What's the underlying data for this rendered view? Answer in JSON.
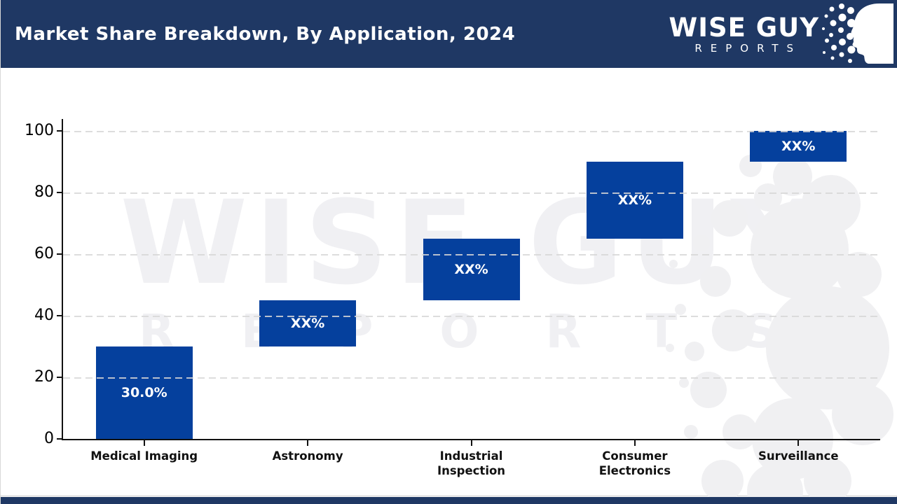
{
  "header": {
    "title": "Market Share Breakdown, By Application, 2024",
    "logo": {
      "line1": "WISE GUY",
      "line2": "REPORTS"
    }
  },
  "watermark": {
    "line1": "WISE GUY",
    "line2": "REPORTS"
  },
  "colors": {
    "header_bg": "#1f3864",
    "footer_bg": "#1f3864",
    "bar": "#05409d",
    "bar_label": "#ffffff",
    "gridline": "#dcdcdc",
    "watermark": "#f0f0f3"
  },
  "chart_data": {
    "type": "bar",
    "subtype": "waterfall",
    "title": "Market Share Breakdown, By Application, 2024",
    "categories": [
      "Medical Imaging",
      "Astronomy",
      "Industrial Inspection",
      "Consumer Electronics",
      "Surveillance"
    ],
    "segments": [
      {
        "category": "Medical Imaging",
        "start": 0,
        "end": 30,
        "label": "30.0%"
      },
      {
        "category": "Astronomy",
        "start": 30,
        "end": 45,
        "label": "XX%"
      },
      {
        "category": "Industrial Inspection",
        "start": 45,
        "end": 65,
        "label": "XX%"
      },
      {
        "category": "Consumer Electronics",
        "start": 65,
        "end": 90,
        "label": "XX%"
      },
      {
        "category": "Surveillance",
        "start": 90,
        "end": 100,
        "label": "XX%"
      }
    ],
    "yticks": [
      0,
      20,
      40,
      60,
      80,
      100
    ],
    "ylim": [
      0,
      105
    ],
    "xlabel": "",
    "ylabel": "",
    "grid": "horizontal-dashed",
    "legend": "none"
  }
}
